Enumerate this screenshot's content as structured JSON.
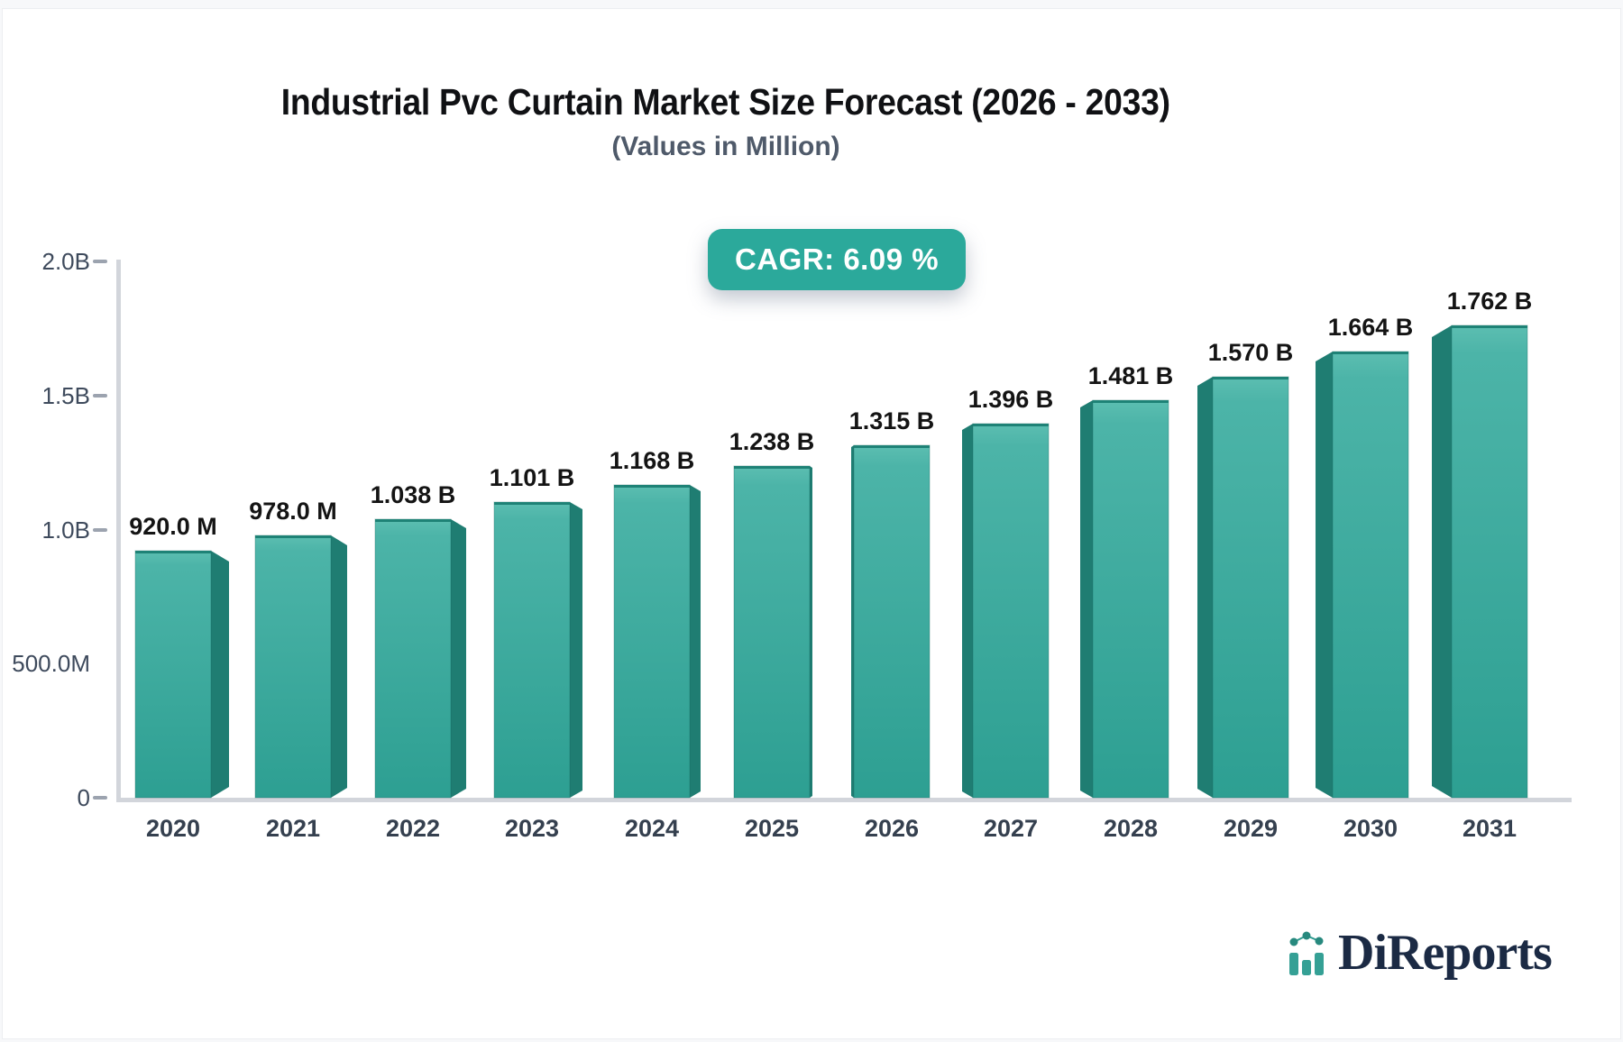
{
  "chart_data": {
    "type": "bar",
    "title": "Industrial Pvc Curtain Market Size Forecast (2026 - 2033)",
    "subtitle": "(Values in Million)",
    "cagr_badge": "CAGR: 6.09 %",
    "unit": "Million",
    "categories": [
      "2020",
      "2021",
      "2022",
      "2023",
      "2024",
      "2025",
      "2026",
      "2027",
      "2028",
      "2029",
      "2030",
      "2031"
    ],
    "values_millions": [
      920,
      978,
      1038,
      1101,
      1168,
      1238,
      1315,
      1396,
      1481,
      1570,
      1664,
      1762
    ],
    "values_display": [
      "920.0 M",
      "978.0 M",
      "1.038 B",
      "1.101 B",
      "1.168 B",
      "1.238 B",
      "1.315 B",
      "1.396 B",
      "1.481 B",
      "1.570 B",
      "1.664 B",
      "1.762 B"
    ],
    "xlabel": "",
    "ylabel": "",
    "ylim_millions": [
      0,
      2000
    ],
    "y_ticks": [
      {
        "label": "2.0B",
        "value": 2000,
        "dash": true
      },
      {
        "label": "1.5B",
        "value": 1500,
        "dash": true
      },
      {
        "label": "1.0B",
        "value": 1000,
        "dash": true
      },
      {
        "label": "500.0M",
        "value": 500,
        "dash": false
      },
      {
        "label": "0",
        "value": 0,
        "dash": true
      }
    ],
    "grid": false,
    "legend": false,
    "bar_style": "3d-perspective"
  },
  "logo": {
    "text": "DiReports"
  },
  "colors": {
    "bar_face_top": "#5CBEB1",
    "bar_face_mid": "#4CB4A8",
    "bar_face_bottom": "#2D9F92",
    "bar_side": "#1F7D72",
    "bar_top_edge": "#1E8276",
    "axis_line": "#D2D5DB",
    "tick_dash": "#9CA3AF",
    "badge_bg": "#2BA99B",
    "badge_text": "#FFFFFF",
    "title_text": "#101114",
    "subtitle_text": "#4F5A6A",
    "axis_label": "#3E4A5C",
    "year_label": "#35404F",
    "value_label": "#141414",
    "logo_text_color": "#1B2A44",
    "logo_teal": "#2E9B90",
    "logo_dot": "#27897E"
  }
}
